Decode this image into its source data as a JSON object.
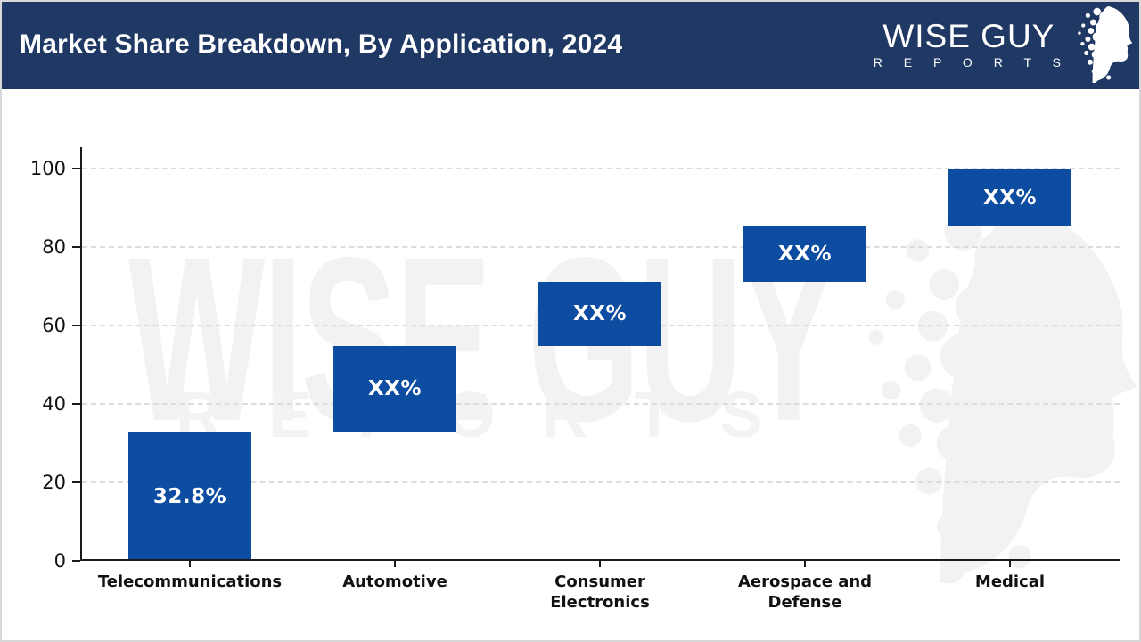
{
  "header": {
    "title": "Market Share Breakdown, By Application, 2024",
    "brand": {
      "name": "WISE GUY",
      "sub": "R E P O R T S"
    },
    "colors": {
      "bg": "#203864",
      "text": "#ffffff"
    }
  },
  "watermark": {
    "name": "WISE GUY",
    "sub": "R E P O R T S"
  },
  "chart_data": {
    "type": "bar",
    "variant": "waterfall",
    "title": "Market Share Breakdown, By Application, 2024",
    "categories": [
      {
        "lines": [
          "Telecommunications"
        ]
      },
      {
        "lines": [
          "Automotive"
        ]
      },
      {
        "lines": [
          "Consumer",
          "Electronics"
        ]
      },
      {
        "lines": [
          "Aerospace and",
          "Defense"
        ]
      },
      {
        "lines": [
          "Medical"
        ]
      }
    ],
    "segments": [
      {
        "category": "Telecommunications",
        "start": 0,
        "end": 32.8,
        "label": "32.8%"
      },
      {
        "category": "Automotive",
        "start": 32.8,
        "end": 54.8,
        "label": "XX%"
      },
      {
        "category": "Consumer Electronics",
        "start": 54.8,
        "end": 71.2,
        "label": "XX%"
      },
      {
        "category": "Aerospace and Defense",
        "start": 71.2,
        "end": 85.2,
        "label": "XX%"
      },
      {
        "category": "Medical",
        "start": 85.2,
        "end": 100.0,
        "label": "XX%"
      }
    ],
    "xlabel": "",
    "ylabel": "",
    "ylim": [
      0,
      105
    ],
    "yticks": [
      0,
      20,
      40,
      60,
      80,
      100
    ],
    "grid": "horizontal-dashed",
    "legend": "none",
    "colors": {
      "bar": "#0d4da1",
      "bar_label": "#ffffff",
      "grid": "#dcdcdc",
      "axis": "#1a1a1a",
      "tick_label": "#111111"
    }
  }
}
